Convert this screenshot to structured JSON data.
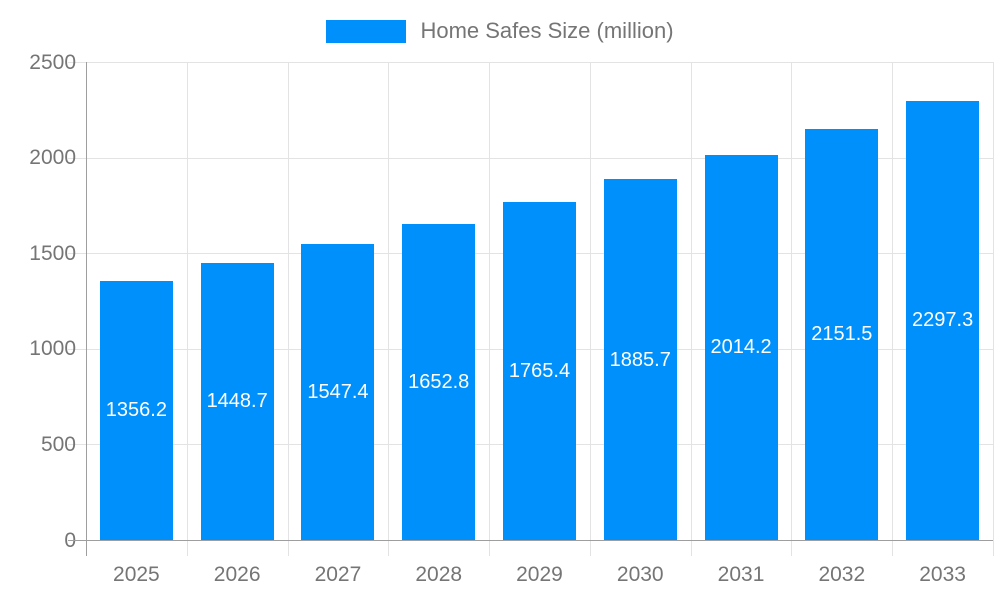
{
  "legend": {
    "label": "Home Safes Size (million)",
    "swatch_color": "#0090fb"
  },
  "chart_data": {
    "type": "bar",
    "title": "Home Safes Size (million)",
    "categories": [
      "2025",
      "2026",
      "2027",
      "2028",
      "2029",
      "2030",
      "2031",
      "2032",
      "2033"
    ],
    "series": [
      {
        "name": "Home Safes Size (million)",
        "values": [
          1356.2,
          1448.7,
          1547.4,
          1652.8,
          1765.4,
          1885.7,
          2014.2,
          2151.5,
          2297.3
        ]
      }
    ],
    "value_labels": [
      "1356.2",
      "1448.7",
      "1547.4",
      "1652.8",
      "1765.4",
      "1885.7",
      "2014.2",
      "2151.5",
      "2297.3"
    ],
    "xlabel": "",
    "ylabel": "",
    "ylim": [
      0,
      2500
    ],
    "yticks": [
      0,
      500,
      1000,
      1500,
      2000,
      2500
    ],
    "grid": true,
    "legend_position": "top",
    "colors": {
      "bar": "#0090fb",
      "value_label": "#ffffff",
      "tick_label": "#757575",
      "axis_line": "#9e9e9e",
      "gridline": "#e3e3e3"
    }
  }
}
